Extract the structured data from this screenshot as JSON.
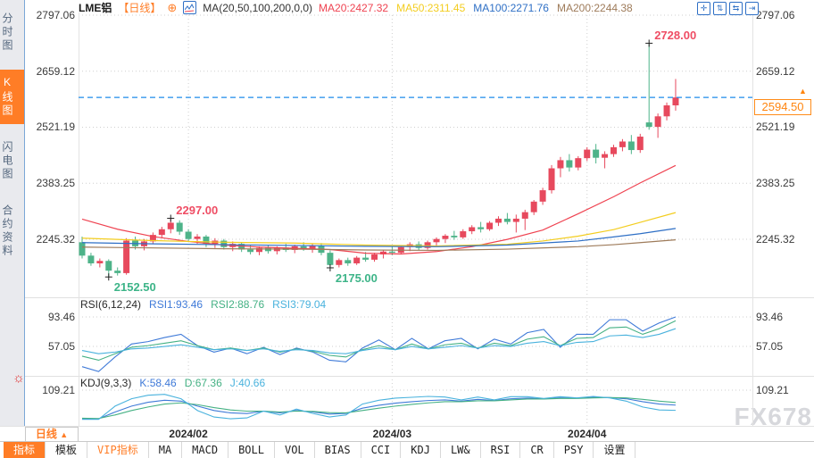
{
  "window": {
    "watermark": "FX678"
  },
  "colors": {
    "accent_orange": "#ff7d26",
    "up": "#e7495d",
    "down": "#4eb389",
    "ma20": "#ef4351",
    "ma50": "#f3cd1f",
    "ma100": "#2e6fc5",
    "ma200": "#9e7b5a",
    "rsi1": "#3f7ad8",
    "rsi2": "#45b184",
    "rsi3": "#49b2dd",
    "price_line": "#1f8ceb",
    "anno_up": "#ef4d64",
    "anno_down": "#3db488",
    "grid": "#cfcfcf"
  },
  "sidebar": {
    "items": [
      {
        "name": "time-chart",
        "label": "分时图",
        "active": false
      },
      {
        "name": "kline-chart",
        "label": "K线图",
        "active": true
      },
      {
        "name": "flash-chart",
        "label": "闪电图",
        "active": false
      },
      {
        "name": "contract-info",
        "label": "合约资料",
        "active": false
      }
    ]
  },
  "header": {
    "symbol": "LME铝",
    "period_tag": "【日线】",
    "add_icon_glyph": "⊕",
    "ma_settings": "MA(20,50,100,200,0,0)",
    "ma_values": [
      {
        "label": "MA20:2427.32",
        "color_key": "ma20"
      },
      {
        "label": "MA50:2311.45",
        "color_key": "ma50"
      },
      {
        "label": "MA100:2271.76",
        "color_key": "ma100"
      },
      {
        "label": "MA200:2244.38",
        "color_key": "ma200"
      }
    ],
    "tool_icons": [
      {
        "name": "pan-icon",
        "glyph": "✛"
      },
      {
        "name": "scale-y-axis-icon",
        "glyph": "⇅"
      },
      {
        "name": "scale-x-axis-icon",
        "glyph": "⇆"
      },
      {
        "name": "exit-chart-icon",
        "glyph": "⇥"
      }
    ]
  },
  "price_tag": {
    "value": "2594.50",
    "arrow_glyph": "▲"
  },
  "rsi": {
    "title": "RSI(6,12,24)",
    "items": [
      {
        "label": "RSI1:93.46",
        "color_key": "rsi1"
      },
      {
        "label": "RSI2:88.76",
        "color_key": "rsi2"
      },
      {
        "label": "RSI3:79.04",
        "color_key": "rsi3"
      }
    ]
  },
  "kdj": {
    "title": "KDJ(9,3,3)",
    "items": [
      {
        "label": "K:58.46",
        "color_key": "rsi1"
      },
      {
        "label": "D:67.36",
        "color_key": "rsi2"
      },
      {
        "label": "J:40.66",
        "color_key": "rsi3"
      }
    ]
  },
  "misc": {
    "alarm_glyph": "☼"
  },
  "period_button": {
    "label": "日线",
    "arrow": "▲"
  },
  "bottom_toolbar": {
    "tabs": [
      {
        "name": "indicator",
        "label": "指标",
        "style": "active"
      },
      {
        "name": "template",
        "label": "模板",
        "style": ""
      },
      {
        "name": "vip-indicator",
        "label": "VIP指标",
        "style": "vip"
      },
      {
        "name": "ma",
        "label": "MA",
        "style": ""
      },
      {
        "name": "macd",
        "label": "MACD",
        "style": ""
      },
      {
        "name": "boll",
        "label": "BOLL",
        "style": ""
      },
      {
        "name": "vol",
        "label": "VOL",
        "style": ""
      },
      {
        "name": "bias",
        "label": "BIAS",
        "style": ""
      },
      {
        "name": "cci",
        "label": "CCI",
        "style": ""
      },
      {
        "name": "kdj",
        "label": "KDJ",
        "style": ""
      },
      {
        "name": "lw",
        "label": "LW&",
        "style": ""
      },
      {
        "name": "rsi",
        "label": "RSI",
        "style": ""
      },
      {
        "name": "cr",
        "label": "CR",
        "style": ""
      },
      {
        "name": "psy",
        "label": "PSY",
        "style": ""
      },
      {
        "name": "settings",
        "label": "设置",
        "style": ""
      }
    ]
  },
  "chart_data": {
    "type": "candlestick",
    "title": "LME铝 日线",
    "x_axis": {
      "labels": [
        "2024/02",
        "2024/03",
        "2024/04"
      ],
      "label_candle_index": [
        12,
        35,
        57
      ]
    },
    "main_pane": {
      "y_labels": [
        2797.06,
        2659.12,
        2521.19,
        2383.25,
        2245.32
      ],
      "current_price": 2594.5,
      "candles_ohlc": [
        [
          2238,
          2252,
          2198,
          2205
        ],
        [
          2205,
          2212,
          2180,
          2186
        ],
        [
          2186,
          2198,
          2176,
          2192
        ],
        [
          2192,
          2196,
          2152.5,
          2168
        ],
        [
          2168,
          2176,
          2156,
          2162
        ],
        [
          2162,
          2248,
          2158,
          2242
        ],
        [
          2242,
          2252,
          2220,
          2228
        ],
        [
          2228,
          2246,
          2218,
          2240
        ],
        [
          2240,
          2262,
          2234,
          2256
        ],
        [
          2256,
          2276,
          2248,
          2270
        ],
        [
          2270,
          2297,
          2260,
          2286
        ],
        [
          2286,
          2292,
          2256,
          2264
        ],
        [
          2264,
          2270,
          2238,
          2246
        ],
        [
          2246,
          2258,
          2234,
          2252
        ],
        [
          2252,
          2256,
          2226,
          2234
        ],
        [
          2234,
          2248,
          2224,
          2242
        ],
        [
          2242,
          2246,
          2220,
          2226
        ],
        [
          2226,
          2240,
          2216,
          2234
        ],
        [
          2234,
          2238,
          2214,
          2220
        ],
        [
          2220,
          2232,
          2208,
          2214
        ],
        [
          2214,
          2228,
          2206,
          2224
        ],
        [
          2224,
          2230,
          2210,
          2216
        ],
        [
          2216,
          2228,
          2208,
          2225
        ],
        [
          2225,
          2234,
          2214,
          2219
        ],
        [
          2219,
          2232,
          2211,
          2228
        ],
        [
          2228,
          2238,
          2217,
          2222
        ],
        [
          2222,
          2234,
          2212,
          2230
        ],
        [
          2230,
          2236,
          2206,
          2212
        ],
        [
          2212,
          2218,
          2175,
          2182
        ],
        [
          2182,
          2198,
          2176,
          2194
        ],
        [
          2194,
          2200,
          2180,
          2186
        ],
        [
          2186,
          2204,
          2182,
          2200
        ],
        [
          2200,
          2214,
          2190,
          2195
        ],
        [
          2195,
          2212,
          2190,
          2208
        ],
        [
          2208,
          2220,
          2198,
          2215
        ],
        [
          2215,
          2228,
          2206,
          2212
        ],
        [
          2212,
          2230,
          2208,
          2226
        ],
        [
          2226,
          2238,
          2216,
          2233
        ],
        [
          2233,
          2240,
          2218,
          2224
        ],
        [
          2224,
          2242,
          2220,
          2238
        ],
        [
          2238,
          2250,
          2230,
          2246
        ],
        [
          2246,
          2258,
          2236,
          2254
        ],
        [
          2254,
          2266,
          2244,
          2250
        ],
        [
          2250,
          2270,
          2246,
          2265
        ],
        [
          2265,
          2280,
          2258,
          2275
        ],
        [
          2275,
          2288,
          2262,
          2270
        ],
        [
          2270,
          2290,
          2266,
          2286
        ],
        [
          2286,
          2302,
          2278,
          2296
        ],
        [
          2296,
          2310,
          2282,
          2288
        ],
        [
          2288,
          2306,
          2262,
          2296
        ],
        [
          2296,
          2318,
          2268,
          2312
        ],
        [
          2312,
          2342,
          2305,
          2338
        ],
        [
          2338,
          2372,
          2330,
          2366
        ],
        [
          2366,
          2428,
          2358,
          2420
        ],
        [
          2420,
          2448,
          2398,
          2440
        ],
        [
          2440,
          2455,
          2412,
          2422
        ],
        [
          2422,
          2450,
          2415,
          2445
        ],
        [
          2445,
          2472,
          2438,
          2466
        ],
        [
          2466,
          2480,
          2432,
          2446
        ],
        [
          2446,
          2462,
          2420,
          2455
        ],
        [
          2455,
          2478,
          2448,
          2472
        ],
        [
          2472,
          2492,
          2462,
          2486
        ],
        [
          2486,
          2502,
          2455,
          2465
        ],
        [
          2465,
          2505,
          2458,
          2498
        ],
        [
          2533,
          2728,
          2515,
          2522
        ],
        [
          2522,
          2555,
          2495,
          2548
        ],
        [
          2548,
          2582,
          2538,
          2575
        ],
        [
          2575,
          2640,
          2562,
          2594.5
        ]
      ],
      "ma_lines": [
        {
          "name": "MA20",
          "color_key": "ma20",
          "points": [
            [
              0,
              2295
            ],
            [
              4,
              2270
            ],
            [
              8,
              2252
            ],
            [
              12,
              2240
            ],
            [
              16,
              2231
            ],
            [
              20,
              2226
            ],
            [
              24,
              2223
            ],
            [
              28,
              2220
            ],
            [
              32,
              2211
            ],
            [
              36,
              2209
            ],
            [
              40,
              2215
            ],
            [
              44,
              2227
            ],
            [
              48,
              2245
            ],
            [
              52,
              2268
            ],
            [
              56,
              2308
            ],
            [
              60,
              2350
            ],
            [
              63,
              2384
            ],
            [
              67,
              2427
            ]
          ]
        },
        {
          "name": "MA50",
          "color_key": "ma50",
          "points": [
            [
              0,
              2248
            ],
            [
              8,
              2242
            ],
            [
              16,
              2238
            ],
            [
              24,
              2236
            ],
            [
              32,
              2231
            ],
            [
              40,
              2229
            ],
            [
              48,
              2233
            ],
            [
              52,
              2241
            ],
            [
              56,
              2253
            ],
            [
              60,
              2269
            ],
            [
              63,
              2287
            ],
            [
              67,
              2311
            ]
          ]
        },
        {
          "name": "MA100",
          "color_key": "ma100",
          "points": [
            [
              0,
              2237
            ],
            [
              8,
              2234
            ],
            [
              16,
              2232
            ],
            [
              24,
              2230
            ],
            [
              32,
              2228
            ],
            [
              40,
              2227
            ],
            [
              48,
              2231
            ],
            [
              56,
              2241
            ],
            [
              60,
              2251
            ],
            [
              63,
              2259
            ],
            [
              67,
              2272
            ]
          ]
        },
        {
          "name": "MA200",
          "color_key": "ma200",
          "points": [
            [
              0,
              2226
            ],
            [
              8,
              2224
            ],
            [
              16,
              2222
            ],
            [
              24,
              2221
            ],
            [
              32,
              2219
            ],
            [
              40,
              2218
            ],
            [
              48,
              2221
            ],
            [
              56,
              2227
            ],
            [
              60,
              2232
            ],
            [
              63,
              2237
            ],
            [
              67,
              2244
            ]
          ]
        }
      ],
      "annotations": [
        {
          "text": "2728.00",
          "price": 2728,
          "candle": 64,
          "side": "above",
          "color_key": "anno_up"
        },
        {
          "text": "2297.00",
          "price": 2297,
          "candle": 10,
          "side": "above",
          "color_key": "anno_up"
        },
        {
          "text": "2152.50",
          "price": 2152.5,
          "candle": 3,
          "side": "below",
          "color_key": "anno_down"
        },
        {
          "text": "2175.00",
          "price": 2175,
          "candle": 28,
          "side": "below",
          "color_key": "anno_down"
        }
      ]
    },
    "rsi_pane": {
      "y_labels": [
        93.46,
        57.05
      ],
      "series": [
        {
          "name": "RSI1",
          "color_key": "rsi1",
          "values": [
            32,
            26,
            44,
            60,
            63,
            68,
            72,
            58,
            50,
            55,
            48,
            56,
            47,
            55,
            50,
            40,
            38,
            55,
            65,
            53,
            67,
            54,
            64,
            67,
            54,
            66,
            60,
            74,
            78,
            56,
            72,
            72,
            90,
            90,
            76,
            86,
            93.46
          ]
        },
        {
          "name": "RSI2",
          "color_key": "rsi2",
          "values": [
            45,
            40,
            48,
            56,
            58,
            61,
            64,
            58,
            53,
            55,
            52,
            55,
            50,
            54,
            51,
            46,
            44,
            53,
            58,
            53,
            60,
            54,
            59,
            61,
            55,
            61,
            58,
            66,
            69,
            58,
            67,
            68,
            80,
            81,
            72,
            79,
            88.76
          ]
        },
        {
          "name": "RSI3",
          "color_key": "rsi3",
          "values": [
            52,
            48,
            50,
            54,
            55,
            57,
            59,
            56,
            53,
            54,
            52,
            54,
            51,
            53,
            52,
            49,
            48,
            52,
            55,
            53,
            57,
            54,
            56,
            58,
            55,
            58,
            57,
            61,
            63,
            58,
            62,
            63,
            70,
            71,
            68,
            72,
            79.04
          ]
        }
      ]
    },
    "kdj_pane": {
      "y_labels": [
        109.21
      ],
      "series": [
        {
          "name": "K",
          "color_key": "rsi1",
          "values": [
            12,
            12,
            35,
            55,
            68,
            75,
            72,
            55,
            40,
            32,
            30,
            38,
            32,
            40,
            35,
            28,
            30,
            48,
            58,
            65,
            70,
            74,
            76,
            72,
            78,
            74,
            80,
            82,
            80,
            83,
            82,
            85,
            84,
            80,
            70,
            62,
            58.46
          ]
        },
        {
          "name": "D",
          "color_key": "rsi2",
          "values": [
            14,
            13,
            25,
            40,
            52,
            62,
            66,
            60,
            50,
            42,
            38,
            38,
            35,
            38,
            37,
            33,
            32,
            40,
            48,
            55,
            61,
            66,
            70,
            70,
            73,
            73,
            76,
            79,
            79,
            81,
            81,
            83,
            84,
            83,
            78,
            72,
            67.36
          ]
        },
        {
          "name": "J",
          "color_key": "rsi3",
          "values": [
            10,
            10,
            55,
            80,
            92,
            95,
            80,
            40,
            18,
            12,
            15,
            38,
            25,
            45,
            30,
            18,
            25,
            62,
            75,
            82,
            85,
            88,
            86,
            76,
            86,
            76,
            87,
            87,
            81,
            87,
            83,
            88,
            83,
            72,
            52,
            42,
            40.66
          ]
        }
      ]
    }
  }
}
